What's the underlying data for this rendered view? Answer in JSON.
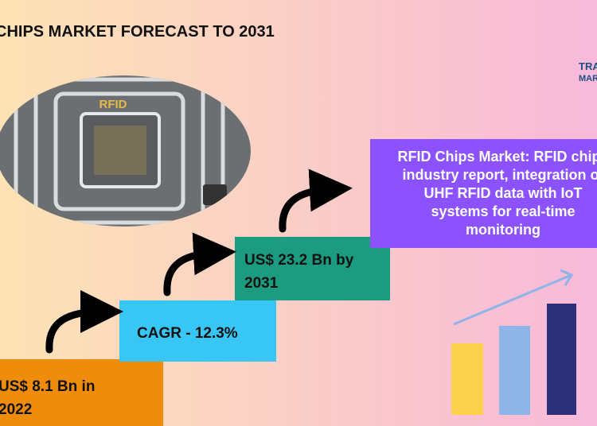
{
  "title": "CHIPS MARKET FORECAST TO 2031",
  "chip_label": "RFID",
  "logo": {
    "line1": "TRA",
    "line2": "MARK"
  },
  "steps": [
    {
      "lines": [
        "US$ 8.1 Bn in",
        "2022"
      ]
    },
    {
      "lines": [
        "CAGR - 12.3%"
      ]
    },
    {
      "lines": [
        "US$ 23.2 Bn by",
        "2031"
      ]
    }
  ],
  "summary": {
    "lines": [
      "RFID Chips Market: RFID chips",
      "industry report, integration of",
      "UHF RFID data with IoT",
      "systems for real-time",
      "monitoring"
    ]
  }
}
